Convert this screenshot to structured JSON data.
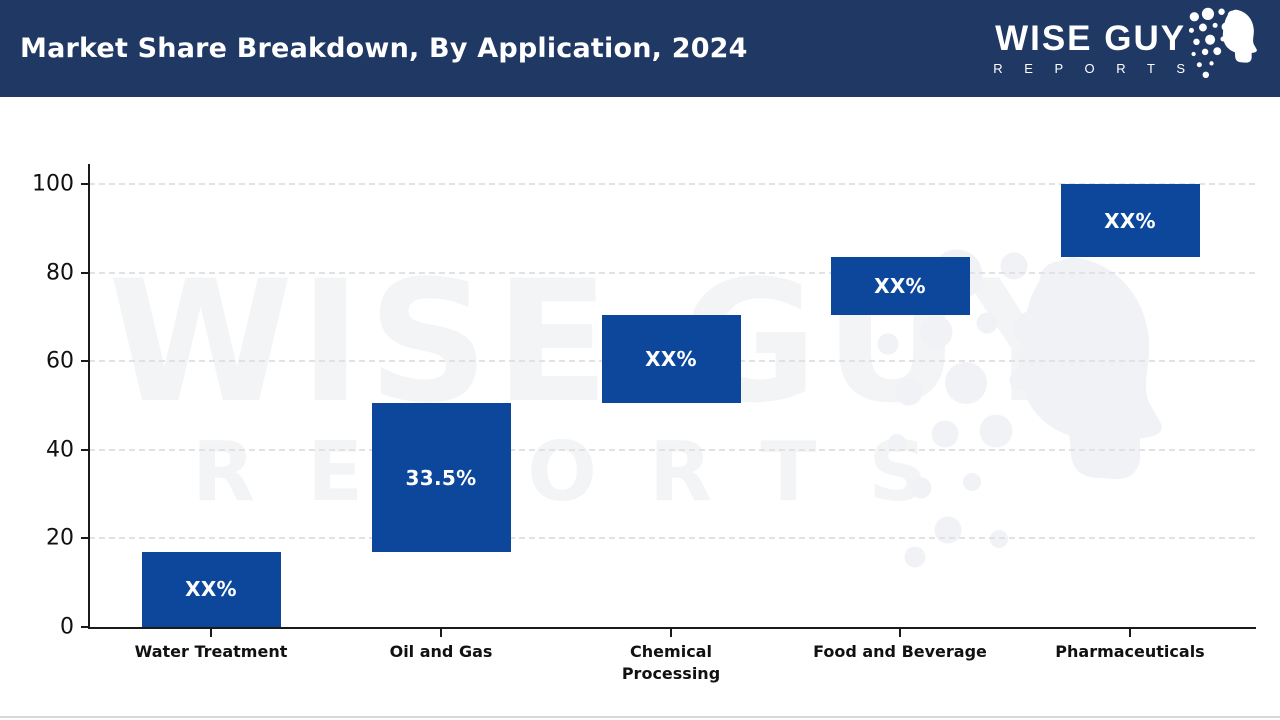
{
  "header": {
    "title": "Market Share Breakdown, By Application, 2024",
    "logo": {
      "line1": "WISE GUY",
      "line2": "R E P O R T S"
    }
  },
  "watermark": {
    "line1": "WISE GUY",
    "line2": "REPORTS"
  },
  "colors": {
    "header_bg": "#1f3864",
    "bar": "#0c479c",
    "bar_label": "#ffffff",
    "grid": "#e2e2e2",
    "axis": "#1a1a1a",
    "watermark": "#f2f3f5",
    "bottom_rule": "#d7d7da"
  },
  "chart_data": {
    "type": "bar",
    "subtype": "waterfall",
    "title": "Market Share Breakdown, By Application, 2024",
    "xlabel": "",
    "ylabel": "",
    "ylim": [
      0,
      104.5
    ],
    "yticks": [
      0,
      20,
      40,
      60,
      80,
      100
    ],
    "grid": "horizontal-dashed",
    "legend": "none",
    "categories": [
      "Water Treatment",
      "Oil and Gas",
      "Chemical Processing",
      "Food and Beverage",
      "Pharmaceuticals"
    ],
    "category_lines": [
      [
        "Water Treatment"
      ],
      [
        "Oil and Gas"
      ],
      [
        "Chemical",
        "Processing"
      ],
      [
        "Food and Beverage"
      ],
      [
        "Pharmaceuticals"
      ]
    ],
    "segments": [
      {
        "category": "Water Treatment",
        "start": 0,
        "end": 17,
        "value": 17,
        "label": "XX%"
      },
      {
        "category": "Oil and Gas",
        "start": 17,
        "end": 50.5,
        "value": 33.5,
        "label": "33.5%"
      },
      {
        "category": "Chemical Processing",
        "start": 50.5,
        "end": 70.5,
        "value": 20,
        "label": "XX%"
      },
      {
        "category": "Food and Beverage",
        "start": 70.5,
        "end": 83.5,
        "value": 13,
        "label": "XX%"
      },
      {
        "category": "Pharmaceuticals",
        "start": 83.5,
        "end": 100,
        "value": 16.5,
        "label": "XX%"
      }
    ]
  }
}
